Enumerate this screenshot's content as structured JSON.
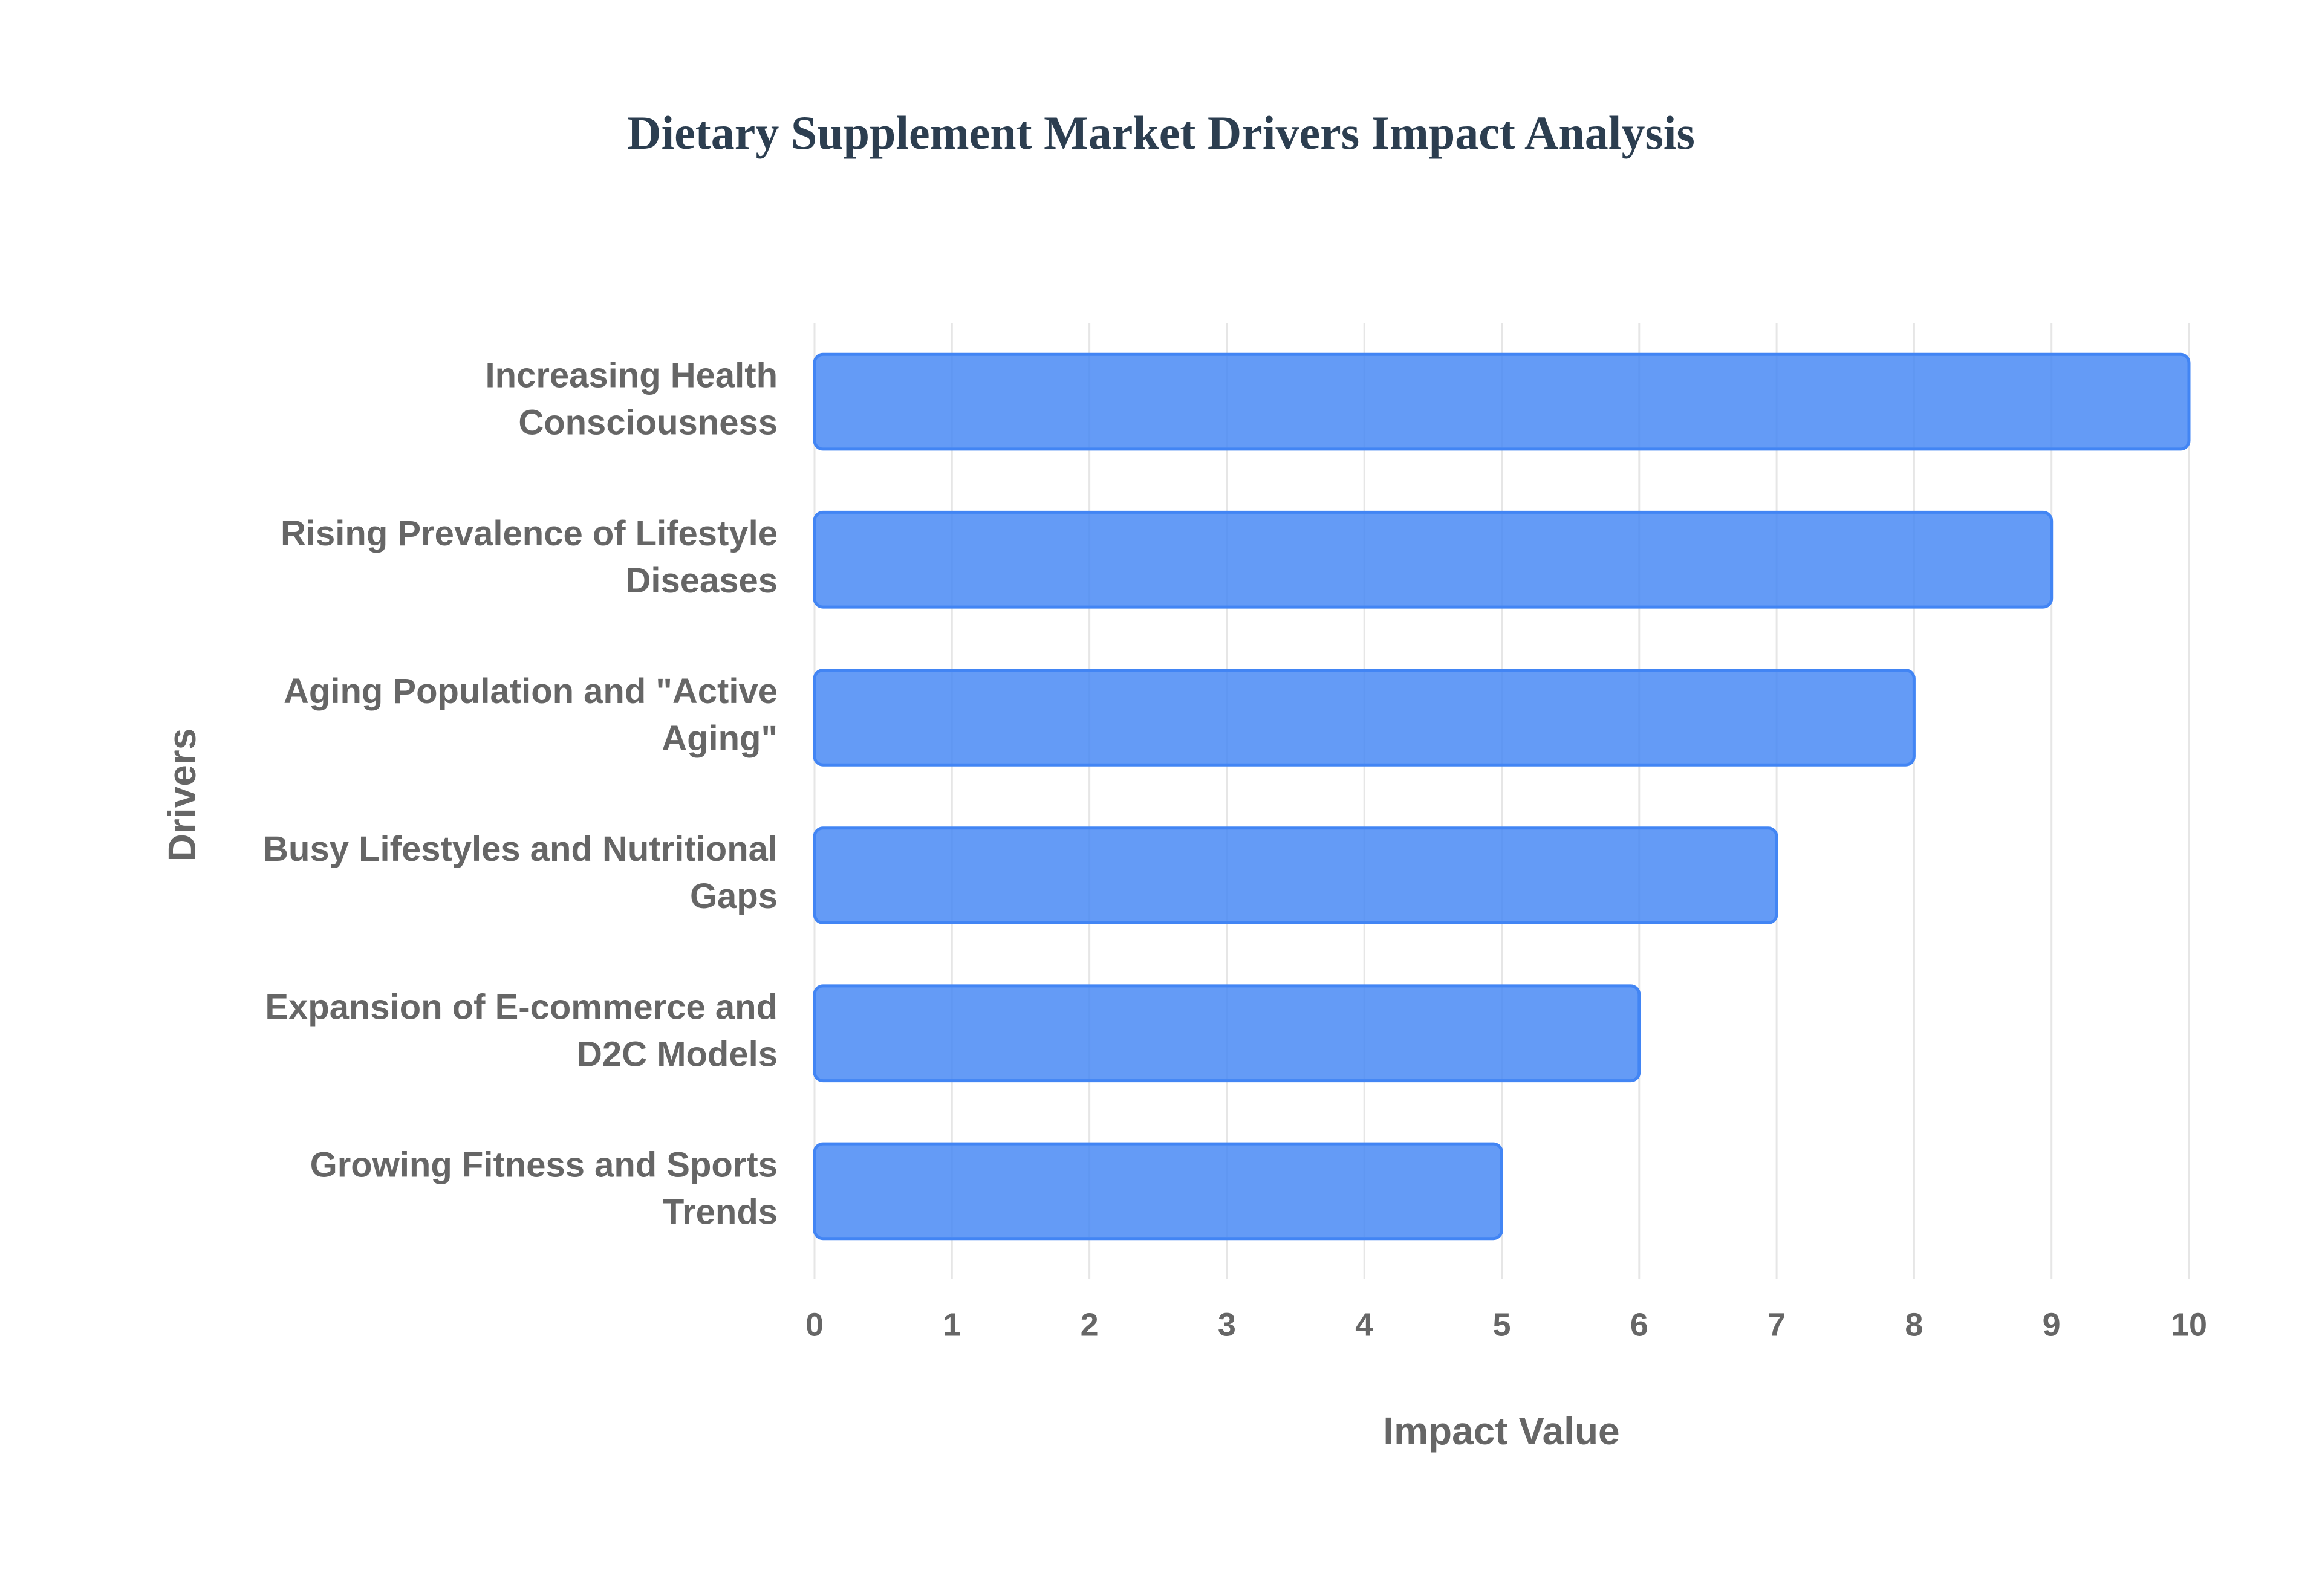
{
  "chart_data": {
    "type": "bar",
    "orientation": "horizontal",
    "title": "Dietary Supplement Market Drivers Impact Analysis",
    "x_label": "Impact Value",
    "y_label": "Drivers",
    "categories": [
      "Increasing Health Consciousness",
      "Rising Prevalence of Lifestyle Diseases",
      "Aging Population and \"Active Aging\"",
      "Busy Lifestyles and Nutritional Gaps",
      "Expansion of E-commerce and D2C Models",
      "Growing Fitness and Sports Trends"
    ],
    "values": [
      10,
      9,
      8,
      7,
      6,
      5
    ],
    "color": "#4285f4",
    "xlim": [
      0,
      10
    ],
    "xticks": [
      0,
      1,
      2,
      3,
      4,
      5,
      6,
      7,
      8,
      9,
      10
    ],
    "grid": true
  }
}
